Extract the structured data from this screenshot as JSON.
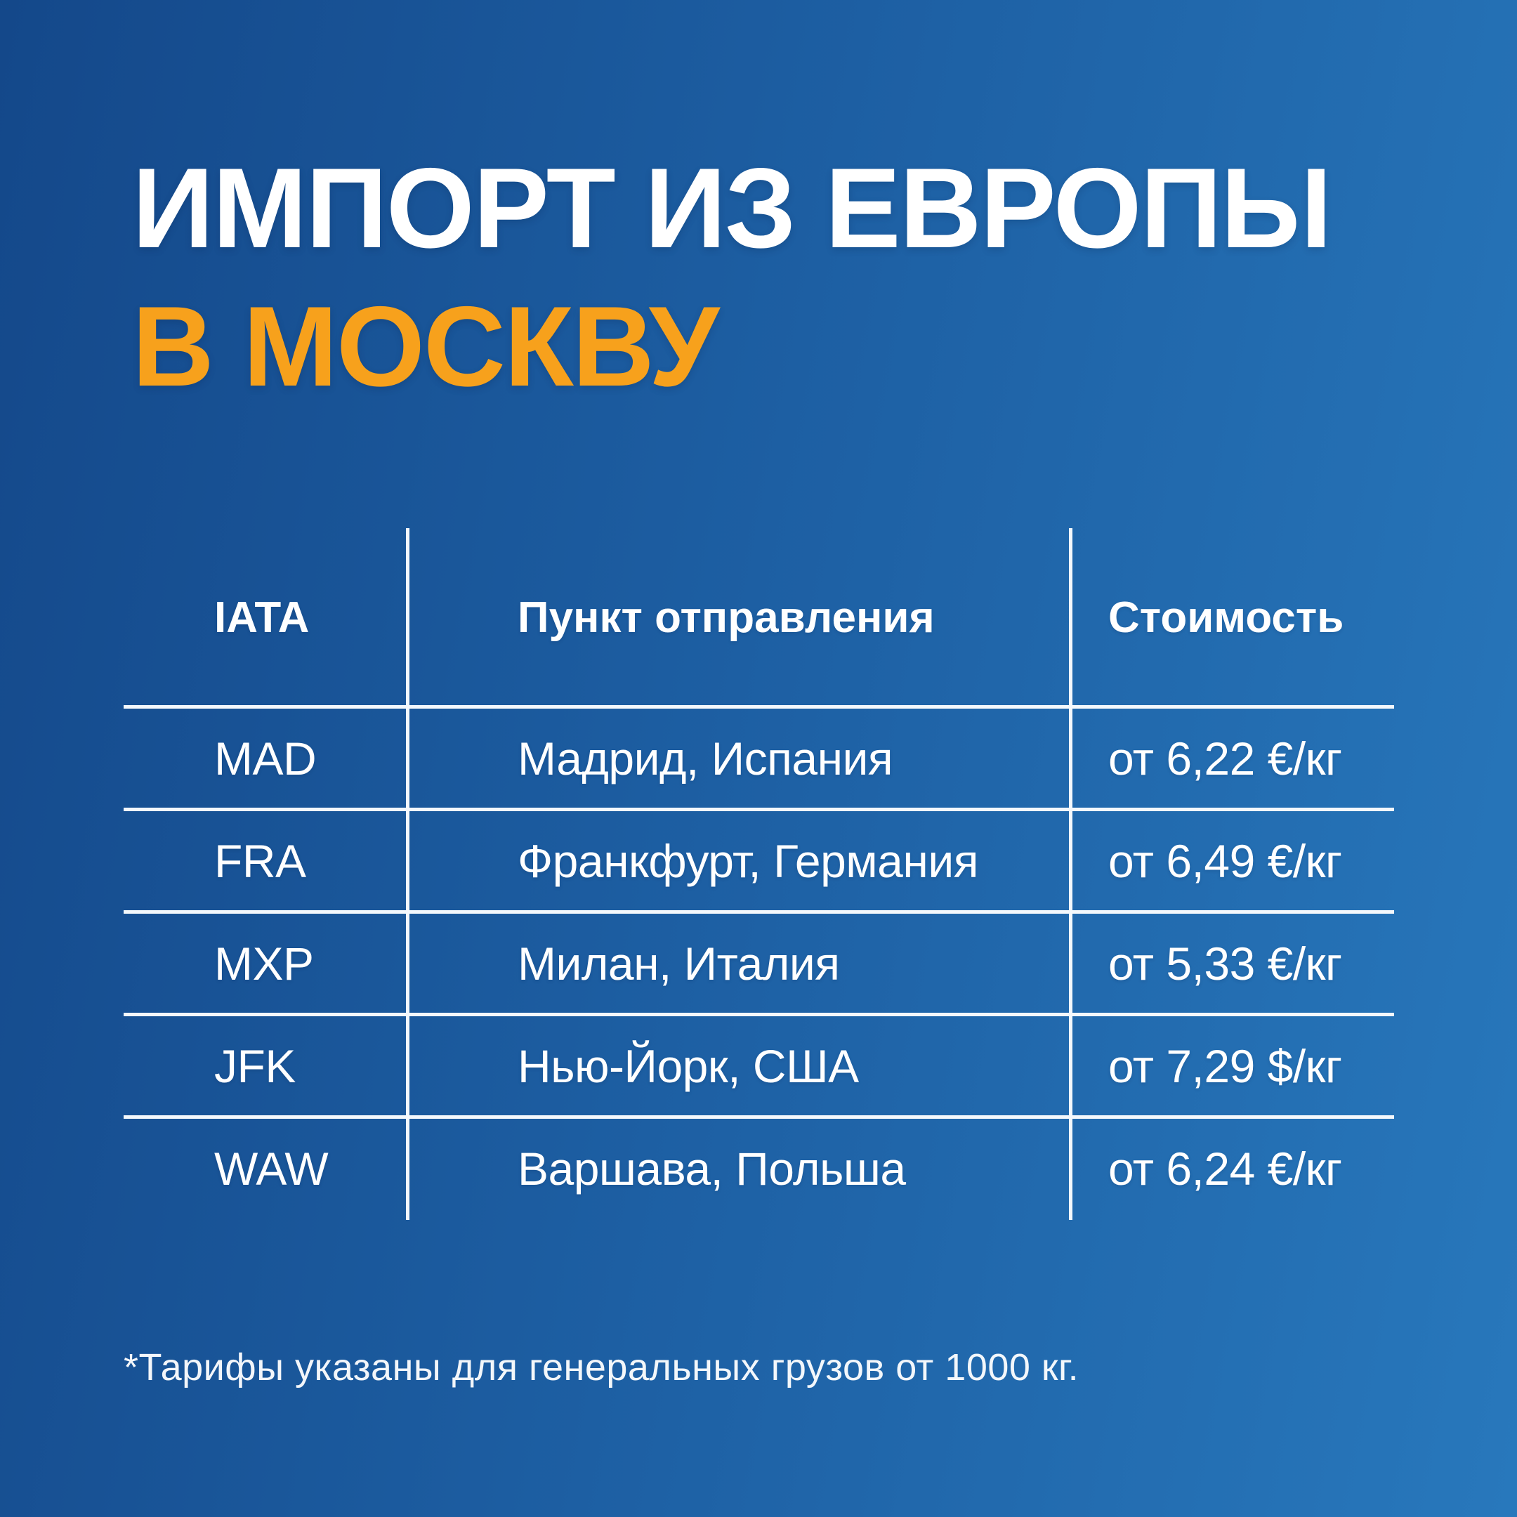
{
  "header": {
    "title_line1": "ИМПОРТ ИЗ ЕВРОПЫ",
    "title_line2": "В МОСКВУ"
  },
  "colors": {
    "accent_orange": "#F7A11C",
    "background_dark_blue": "#14488A",
    "background_light_blue": "#2878BC",
    "text_white": "#FFFFFF",
    "table_line": "#F4F8FC"
  },
  "table": {
    "headers": {
      "iata": "IATA",
      "origin": "Пункт отправления",
      "price": "Стоимость"
    },
    "rows": [
      {
        "iata": "MAD",
        "origin": "Мадрид, Испания",
        "price": "от 6,22 €/кг"
      },
      {
        "iata": "FRA",
        "origin": "Франкфурт, Германия",
        "price": "от 6,49 €/кг"
      },
      {
        "iata": "MXP",
        "origin": "Милан, Италия",
        "price": "от 5,33 €/кг"
      },
      {
        "iata": "JFK",
        "origin": "Нью-Йорк, США",
        "price": "от 7,29 $/кг"
      },
      {
        "iata": "WAW",
        "origin": "Варшава, Польша",
        "price": "от 6,24 €/кг"
      }
    ]
  },
  "footnote": {
    "text": "*Тарифы указаны для генеральных грузов от 1000 кг."
  },
  "chart_data": {
    "type": "table",
    "title": "ИМПОРТ ИЗ ЕВРОПЫ В МОСКВУ",
    "columns": [
      "IATA",
      "Пункт отправления",
      "Стоимость"
    ],
    "rows": [
      [
        "MAD",
        "Мадрид, Испания",
        "от 6,22 €/кг"
      ],
      [
        "FRA",
        "Франкфурт, Германия",
        "от 6,49 €/кг"
      ],
      [
        "MXP",
        "Милан, Италия",
        "от 5,33 €/кг"
      ],
      [
        "JFK",
        "Нью-Йорк, США",
        "от 7,29 $/кг"
      ],
      [
        "WAW",
        "Варшава, Польша",
        "от 6,24 €/кг"
      ]
    ],
    "values_numeric": [
      6.22,
      6.49,
      5.33,
      7.29,
      6.24
    ],
    "currency_per_row": [
      "EUR",
      "EUR",
      "EUR",
      "USD",
      "EUR"
    ],
    "unit": "per kg",
    "footnote": "*Тарифы указаны для генеральных грузов от 1000 кг."
  }
}
